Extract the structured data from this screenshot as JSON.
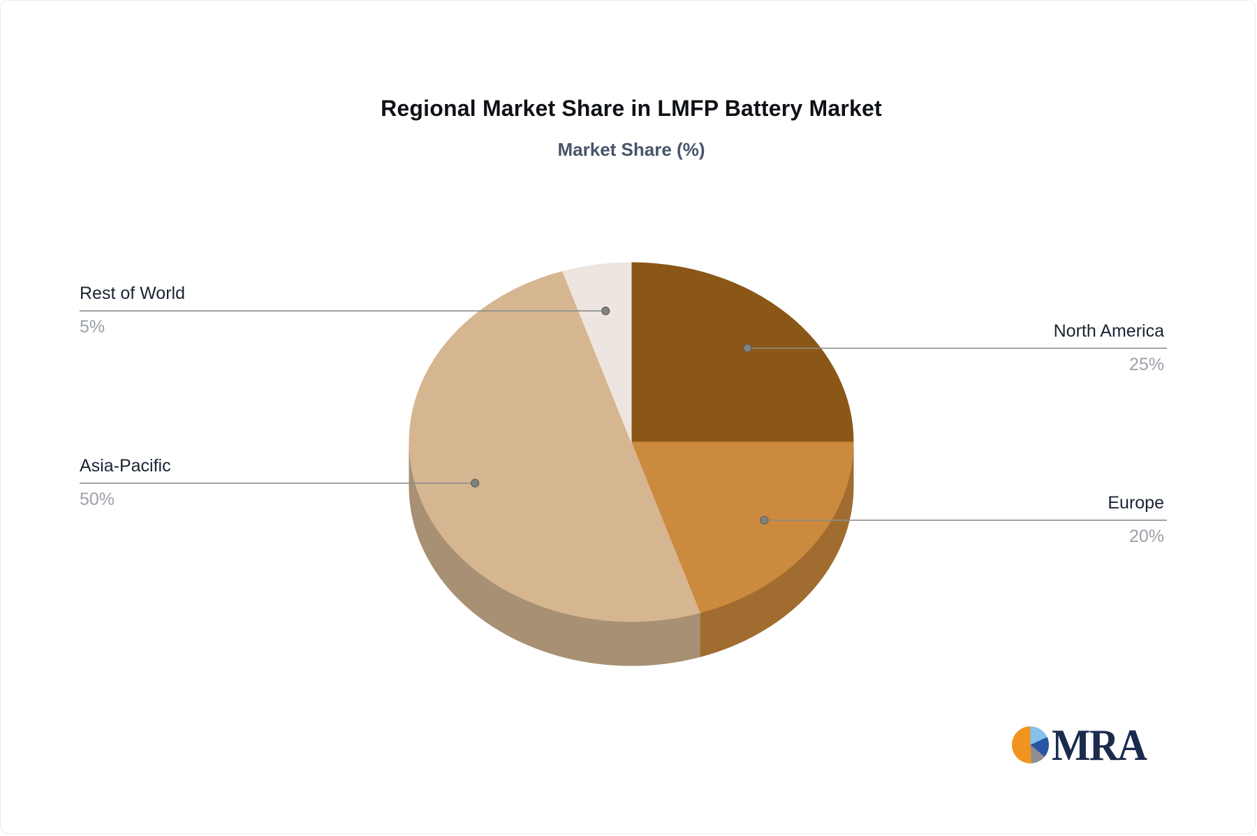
{
  "header": {
    "title": "Regional Market Share in LMFP Battery Market",
    "subtitle": "Market Share (%)"
  },
  "chart_data": {
    "type": "pie",
    "title": "Regional Market Share in LMFP Battery Market",
    "subtitle": "Market Share (%)",
    "unit": "%",
    "style": "3d-pie, no legend, callout labels with leader lines, starts at 12 o'clock clockwise",
    "segments": [
      {
        "key": "north-america",
        "label": "North America",
        "value": 25,
        "value_label": "25%",
        "color": "#8B5717",
        "side_color": "#6F4512",
        "label_side": "right"
      },
      {
        "key": "europe",
        "label": "Europe",
        "value": 20,
        "value_label": "20%",
        "color": "#CC8A3E",
        "side_color": "#A16C30",
        "label_side": "right"
      },
      {
        "key": "asia-pacific",
        "label": "Asia-Pacific",
        "value": 50,
        "value_label": "50%",
        "color": "#D6B691",
        "side_color": "#A79073",
        "label_side": "left"
      },
      {
        "key": "rest-of-world",
        "label": "Rest of World",
        "value": 5,
        "value_label": "5%",
        "color": "#EDE5DF",
        "side_color": "#BBB4AE",
        "label_side": "left"
      }
    ],
    "colors": {
      "leader_line": "#8C8C8C",
      "label_text": "#1A2433",
      "value_text": "#9CA1A8",
      "title_text": "#0E1116",
      "subtitle_text": "#475569"
    }
  },
  "logo": {
    "text": "MRA",
    "colors": {
      "orange": "#F0931F",
      "light_blue": "#85C1EA",
      "blue": "#2A55A4",
      "gray": "#8F8F8F",
      "text": "#1B2B4D"
    }
  }
}
